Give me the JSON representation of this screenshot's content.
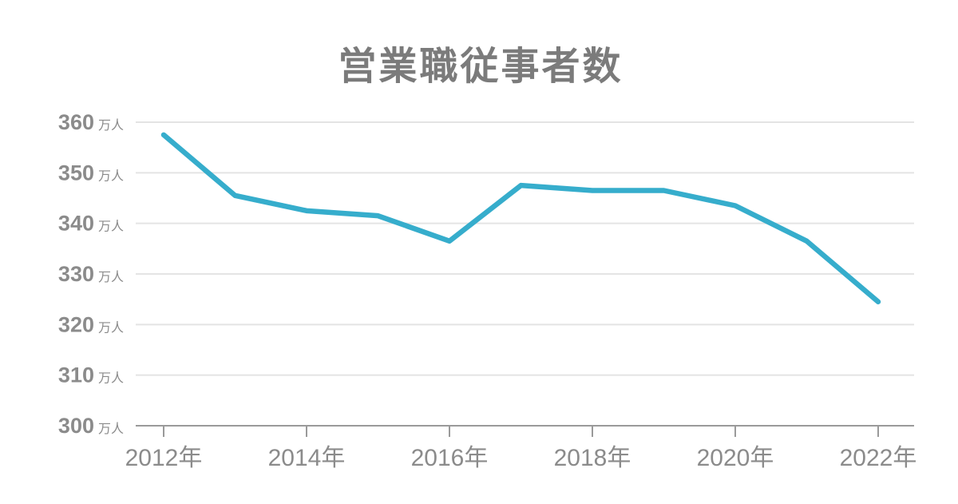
{
  "page": {
    "title": "営業職従事者数"
  },
  "colors": {
    "line": "#36adcc",
    "grid": "#e4e4e4",
    "axis": "#9a9a9a",
    "tick": "#9a9a9a",
    "tick_label": "#8b8b8b",
    "title": "#7b7b7b"
  },
  "chart_data": {
    "type": "line",
    "title": "営業職従事者数",
    "x": [
      2012,
      2013,
      2014,
      2015,
      2016,
      2017,
      2018,
      2019,
      2020,
      2021,
      2022
    ],
    "values": [
      357.5,
      345.5,
      342.5,
      341.5,
      336.5,
      347.5,
      346.5,
      346.5,
      343.5,
      336.5,
      324.5
    ],
    "x_ticks": [
      2012,
      2014,
      2016,
      2018,
      2020,
      2022
    ],
    "x_tick_labels": [
      "2012年",
      "2014年",
      "2016年",
      "2018年",
      "2020年",
      "2022年"
    ],
    "y_ticks": [
      300,
      310,
      320,
      330,
      340,
      350,
      360
    ],
    "y_tick_suffix": "万人",
    "ylim": [
      300,
      360
    ],
    "xlabel": "",
    "ylabel": "",
    "grid": "horizontal",
    "legend": "none"
  }
}
